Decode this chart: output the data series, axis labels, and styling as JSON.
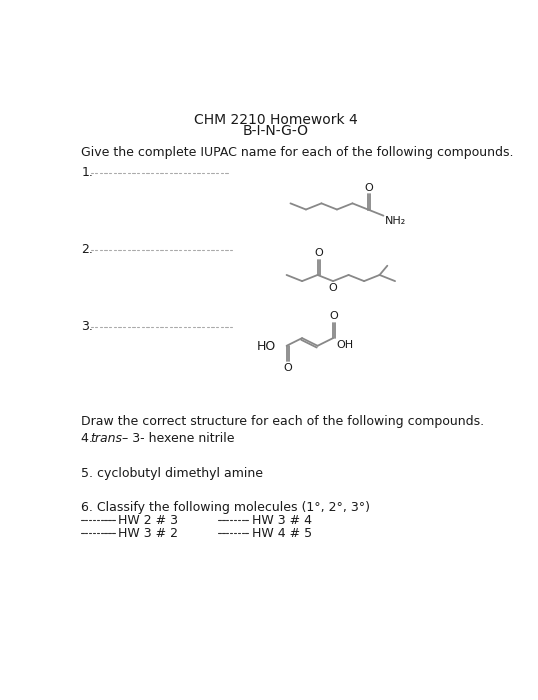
{
  "title_line1": "CHM 2210 Homework 4",
  "title_line2": "B-I-N-G-O",
  "instruction1": "Give the complete IUPAC name for each of the following compounds.",
  "instruction2": "Draw the correct structure for each of the following compounds.",
  "q4_prefix": "4. ",
  "q4_trans": "trans",
  "q4_suffix": " – 3- hexene nitrile",
  "q5": "5. cyclobutyl dimethyl amine",
  "q6": "6. Classify the following molecules (1°, 2°, 3°)",
  "bg_color": "#ffffff",
  "mol_color": "#888888"
}
